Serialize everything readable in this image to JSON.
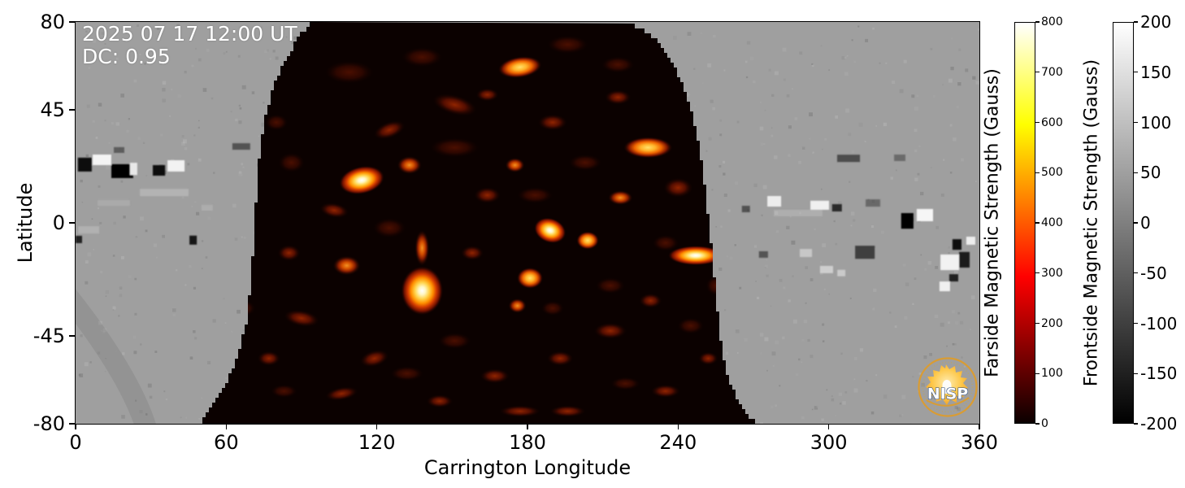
{
  "figure": {
    "annotation": {
      "line1": "2025 07 17 12:00 UT",
      "line2": "DC: 0.95"
    },
    "axes": {
      "xlabel": "Carrington Longitude",
      "ylabel": "Latitude",
      "xticks": [
        0,
        60,
        120,
        180,
        240,
        300,
        360
      ],
      "yticks": [
        80,
        45,
        0,
        -45,
        -80
      ]
    },
    "colorbars": [
      {
        "id": "farside",
        "label": "Farside Magnetic Strength (Gauss)",
        "min": 0,
        "max": 800,
        "ticks": [
          800,
          700,
          600,
          500,
          400,
          300,
          200,
          100,
          0
        ],
        "colormap": "hot"
      },
      {
        "id": "frontside",
        "label": "Frontside Magnetic Strength (Gauss)",
        "min": -200,
        "max": 200,
        "ticks": [
          200,
          150,
          100,
          50,
          0,
          -50,
          -100,
          -150,
          -200
        ],
        "colormap": "gray"
      }
    ],
    "logo": {
      "text": "NISP"
    },
    "colors": {
      "frontside_gray": "#9f9f9f",
      "farside_bg": "#0b0100",
      "hot_red": "#ff0000",
      "hot_yellow": "#ffff00",
      "logo_gold": "#d99c33",
      "logo_navy": "#1d3f77"
    }
  },
  "chart_data": {
    "type": "heatmap",
    "title": "",
    "xlabel": "Carrington Longitude",
    "ylabel": "Latitude",
    "xlim": [
      0,
      360
    ],
    "ylim": [
      -80,
      80
    ],
    "xticks": [
      0,
      60,
      120,
      180,
      240,
      300,
      360
    ],
    "yticks": [
      80,
      45,
      0,
      -45,
      -80
    ],
    "annotation": {
      "date": "2025 07 17 12:00 UT",
      "dc": 0.95
    },
    "farside_value_range_gauss": [
      0,
      800
    ],
    "frontside_value_range_gauss": [
      -200,
      200
    ],
    "farside_region": {
      "description": "central dark window (farside helioseismic map), stair-stepped boundary",
      "boundary_left": [
        [
          95.5,
          80
        ],
        [
          89.7,
          74.2
        ],
        [
          83.8,
          64.5
        ],
        [
          79.3,
          54.7
        ],
        [
          76.1,
          43.4
        ],
        [
          73.5,
          28.8
        ],
        [
          72.2,
          12.6
        ],
        [
          71.2,
          -5.2
        ],
        [
          69.9,
          -23
        ],
        [
          68.3,
          -39.2
        ],
        [
          65.7,
          -50.5
        ],
        [
          61.8,
          -60.9
        ],
        [
          56.7,
          -70.6
        ],
        [
          51.5,
          -78.1
        ],
        [
          50.2,
          -80
        ]
      ],
      "boundary_right": [
        [
          221.5,
          80
        ],
        [
          228.9,
          75.8
        ],
        [
          233.8,
          70.9
        ],
        [
          238,
          64.5
        ],
        [
          241.9,
          56.4
        ],
        [
          245.1,
          46.6
        ],
        [
          247.7,
          35.3
        ],
        [
          249.6,
          24
        ],
        [
          251.3,
          11
        ],
        [
          252.6,
          -1.9
        ],
        [
          253.8,
          -14.9
        ],
        [
          255.1,
          -27.9
        ],
        [
          256.4,
          -40.8
        ],
        [
          258,
          -52.1
        ],
        [
          260.3,
          -61.9
        ],
        [
          263.8,
          -70
        ],
        [
          268.4,
          -76.4
        ],
        [
          273.6,
          -80
        ]
      ]
    },
    "levels": {
      "white": {
        "gauss_est": 800,
        "opacity": 1,
        "stops": [
          [
            0,
            "#ffffff"
          ],
          [
            0.16,
            "#fff7c4"
          ],
          [
            0.34,
            "#ffd24a"
          ],
          [
            0.52,
            "#ff8f00"
          ],
          [
            0.68,
            "#d13a00"
          ],
          [
            0.85,
            "#6e1000"
          ],
          [
            1,
            "rgba(30,2,0,0)"
          ]
        ]
      },
      "yellow": {
        "gauss_est": 600,
        "opacity": 1,
        "stops": [
          [
            0,
            "#ffe16b"
          ],
          [
            0.3,
            "#ffb32a"
          ],
          [
            0.55,
            "#ef6500"
          ],
          [
            0.78,
            "#801800"
          ],
          [
            1,
            "rgba(30,2,0,0)"
          ]
        ]
      },
      "orange": {
        "gauss_est": 400,
        "opacity": 0.95,
        "stops": [
          [
            0,
            "#ff9722"
          ],
          [
            0.35,
            "#dd5200"
          ],
          [
            0.62,
            "#8a1d00"
          ],
          [
            1,
            "rgba(28,2,0,0)"
          ]
        ]
      },
      "red": {
        "gauss_est": 220,
        "opacity": 0.85,
        "stops": [
          [
            0,
            "#a82a00"
          ],
          [
            0.5,
            "#611000"
          ],
          [
            1,
            "rgba(25,2,0,0)"
          ]
        ]
      },
      "dim": {
        "gauss_est": 100,
        "opacity": 0.8,
        "stops": [
          [
            0,
            "#5a1200"
          ],
          [
            0.55,
            "#340800"
          ],
          [
            1,
            "rgba(20,1,0,0)"
          ]
        ]
      }
    },
    "farside_sources": {
      "columns": [
        "lon",
        "lat",
        "rlon_deg",
        "rlat_deg",
        "level",
        "rot_deg"
      ],
      "rows": [
        [
          138,
          -27,
          8.4,
          9.7,
          "white",
          0
        ],
        [
          247,
          -13,
          11,
          3.9,
          "white",
          0
        ],
        [
          114,
          17,
          9.1,
          5.5,
          "white",
          -12
        ],
        [
          189,
          -3,
          6.5,
          4.9,
          "white",
          20
        ],
        [
          177,
          62,
          8.7,
          4.2,
          "yellow",
          -8
        ],
        [
          228,
          30,
          9.7,
          4.2,
          "yellow",
          0
        ],
        [
          181,
          -22,
          5.2,
          4.2,
          "yellow",
          0
        ],
        [
          204,
          -7,
          4.5,
          3.6,
          "yellow",
          0
        ],
        [
          133,
          23,
          4.9,
          3.6,
          "orange",
          0
        ],
        [
          108,
          -17,
          5.5,
          3.9,
          "orange",
          0
        ],
        [
          175,
          23,
          3.9,
          2.9,
          "orange",
          0
        ],
        [
          217,
          10,
          4.9,
          2.9,
          "orange",
          0
        ],
        [
          138,
          -10,
          2.9,
          7.1,
          "orange",
          0
        ],
        [
          176,
          -33,
          3.6,
          2.9,
          "orange",
          0
        ],
        [
          151,
          47,
          9,
          3.9,
          "red",
          15
        ],
        [
          125,
          37,
          6.5,
          3.2,
          "red",
          -20
        ],
        [
          164,
          51,
          4.5,
          2.6,
          "red",
          0
        ],
        [
          190,
          40,
          5.8,
          3.2,
          "red",
          0
        ],
        [
          216,
          50,
          5.2,
          2.9,
          "red",
          0
        ],
        [
          240,
          14,
          5.8,
          3.9,
          "red",
          0
        ],
        [
          164,
          11,
          5.2,
          3.2,
          "red",
          0
        ],
        [
          103,
          5,
          5.8,
          2.9,
          "red",
          10
        ],
        [
          85,
          -12,
          4.5,
          3.2,
          "red",
          0
        ],
        [
          158,
          -12,
          4.5,
          2.9,
          "red",
          0
        ],
        [
          213,
          -43,
          6.5,
          3.2,
          "red",
          0
        ],
        [
          229,
          -31,
          4.5,
          2.9,
          "red",
          0
        ],
        [
          193,
          -54,
          5.2,
          2.9,
          "red",
          0
        ],
        [
          167,
          -61,
          5.8,
          2.9,
          "red",
          0
        ],
        [
          119,
          -54,
          5.8,
          3.2,
          "red",
          -15
        ],
        [
          90,
          -38,
          7.1,
          3.2,
          "red",
          10
        ],
        [
          77,
          -54,
          4.5,
          2.9,
          "red",
          0
        ],
        [
          106,
          -68,
          6.5,
          2.6,
          "red",
          -10
        ],
        [
          145,
          -71,
          5.2,
          2.6,
          "red",
          0
        ],
        [
          196,
          -75,
          7.1,
          2.3,
          "red",
          0
        ],
        [
          235,
          -67,
          5.8,
          2.6,
          "red",
          0
        ],
        [
          252,
          -54,
          3.9,
          2.6,
          "red",
          0
        ],
        [
          177,
          -75,
          8.1,
          2.3,
          "red",
          0
        ],
        [
          109,
          60,
          9.7,
          4.5,
          "dim",
          0
        ],
        [
          138,
          66,
          8.1,
          3.9,
          "dim",
          0
        ],
        [
          196,
          71,
          8.1,
          3.6,
          "dim",
          0
        ],
        [
          216,
          63,
          6.5,
          3.2,
          "dim",
          0
        ],
        [
          151,
          30,
          9.7,
          3.9,
          "dim",
          0
        ],
        [
          183,
          11,
          7.1,
          3.2,
          "dim",
          0
        ],
        [
          203,
          24,
          6.5,
          3.2,
          "dim",
          0
        ],
        [
          125,
          -2,
          6.5,
          3.9,
          "dim",
          0
        ],
        [
          86,
          24,
          5.2,
          3.9,
          "dim",
          0
        ],
        [
          80,
          40,
          4.5,
          3.2,
          "dim",
          0
        ],
        [
          235,
          -8,
          5.2,
          3.2,
          "dim",
          0
        ],
        [
          245,
          -41,
          5.2,
          3.2,
          "dim",
          0
        ],
        [
          151,
          -47,
          6.5,
          3.2,
          "dim",
          0
        ],
        [
          132,
          -60,
          6.5,
          2.9,
          "dim",
          0
        ],
        [
          67,
          -34,
          4.5,
          3.2,
          "dim",
          0
        ],
        [
          213,
          -25,
          5.8,
          3.2,
          "dim",
          0
        ],
        [
          190,
          -34,
          4.5,
          2.9,
          "dim",
          0
        ],
        [
          255,
          -25,
          3.9,
          3.9,
          "dim",
          0
        ],
        [
          219,
          -64,
          5.8,
          2.6,
          "dim",
          0
        ],
        [
          83,
          -67,
          5.2,
          2.6,
          "dim",
          0
        ]
      ]
    },
    "frontside_active_regions": {
      "columns": [
        "lon",
        "lat",
        "w_deg",
        "h_deg",
        "shade",
        "opacity"
      ],
      "rows": [
        [
          3.7,
          23.2,
          5.5,
          5.5,
          "#0a0a0a",
          1
        ],
        [
          10.5,
          25.1,
          7.4,
          4.2,
          "#f4f4f4",
          1
        ],
        [
          18.6,
          20.6,
          8.7,
          5.5,
          "#050505",
          1
        ],
        [
          23.1,
          21.5,
          2.9,
          4.9,
          "#e8e8e8",
          1
        ],
        [
          33.2,
          20.9,
          4.9,
          4.2,
          "#101010",
          1
        ],
        [
          40,
          22.7,
          6.8,
          4.5,
          "#f2f2f2",
          1
        ],
        [
          17.3,
          29,
          4.2,
          2.3,
          "#555555",
          0.9
        ],
        [
          66,
          30.4,
          7.1,
          2.6,
          "#4a4a4a",
          0.9
        ],
        [
          35.3,
          12.1,
          19.4,
          2.9,
          "#cccccc",
          0.45
        ],
        [
          46.8,
          -6.9,
          2.9,
          3.6,
          "#161616",
          1
        ],
        [
          1.3,
          -6.6,
          2.6,
          2.9,
          "#202020",
          1
        ],
        [
          5.2,
          -2.8,
          8.4,
          2.9,
          "#c4c4c4",
          0.5
        ],
        [
          52.4,
          6,
          4.5,
          2.3,
          "#bbbbbb",
          0.5
        ],
        [
          15.2,
          7.9,
          12.9,
          2.3,
          "#bbbbbb",
          0.4
        ],
        [
          331.3,
          0.8,
          4.9,
          6.2,
          "#050505",
          1
        ],
        [
          338.3,
          3.1,
          6.5,
          4.9,
          "#f6f6f6",
          1
        ],
        [
          351.1,
          -8.6,
          3.6,
          4.2,
          "#111111",
          1
        ],
        [
          356.6,
          -7.1,
          3.6,
          3.2,
          "#eeeeee",
          1
        ],
        [
          348.2,
          -15.7,
          7.4,
          6.2,
          "#f2f2f2",
          1
        ],
        [
          354,
          -14.7,
          4.2,
          6.2,
          "#1a1a1a",
          1
        ],
        [
          346.2,
          -25.3,
          4.2,
          3.9,
          "#f0f0f0",
          1
        ],
        [
          349.8,
          -21.9,
          3.6,
          2.9,
          "#222222",
          1
        ],
        [
          278.3,
          8.6,
          5.5,
          4.2,
          "#ededed",
          1
        ],
        [
          296.4,
          7,
          7.4,
          3.6,
          "#f0f0f0",
          1
        ],
        [
          303.3,
          6,
          3.9,
          2.9,
          "#2a2a2a",
          1
        ],
        [
          307.9,
          25.7,
          9.1,
          2.9,
          "#3a3a3a",
          0.8
        ],
        [
          314.4,
          -11.7,
          7.8,
          5.2,
          "#2f2f2f",
          0.85
        ],
        [
          274,
          -12.6,
          3.6,
          2.6,
          "#4a4a4a",
          0.9
        ],
        [
          290.9,
          -12,
          4.9,
          3.2,
          "#d9d9d9",
          0.7
        ],
        [
          299.1,
          -18.6,
          5.2,
          2.9,
          "#e3e3e3",
          0.7
        ],
        [
          328.3,
          25.9,
          4.5,
          2.6,
          "#555555",
          0.7
        ],
        [
          317.6,
          7.9,
          5.8,
          2.9,
          "#444444",
          0.6
        ],
        [
          287.8,
          3.9,
          19.4,
          2.6,
          "#cccccc",
          0.35
        ],
        [
          267,
          5.5,
          3.2,
          2.6,
          "#3f3f3f",
          0.8
        ],
        [
          305,
          -20,
          3.2,
          2.6,
          "#dddddd",
          0.7
        ]
      ]
    }
  }
}
